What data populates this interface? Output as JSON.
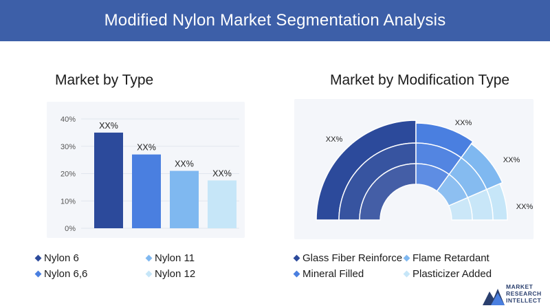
{
  "page": {
    "title": "Modified Nylon Market Segmentation Analysis"
  },
  "left": {
    "title": "Market by Type"
  },
  "right": {
    "title": "Market by Modification Type"
  },
  "colors": {
    "header": "#3d5fa8",
    "nylon6": "#2c4a9b",
    "nylon66": "#4a7fe0",
    "nylon11": "#7fb8f0",
    "nylon12": "#c6e6f8",
    "glass": "#2c4a9b",
    "flame": "#7fb8f0",
    "mineral": "#4a7fe0",
    "plasticizer": "#c6e6f8"
  },
  "chart_data": [
    {
      "type": "bar",
      "title": "Market by Type",
      "categories": [
        "Nylon 6",
        "Nylon 6,6",
        "Nylon 11",
        "Nylon 12"
      ],
      "values": [
        35,
        27,
        21,
        17.5
      ],
      "data_labels": [
        "XX%",
        "XX%",
        "XX%",
        "XX%"
      ],
      "ylim": [
        0,
        40
      ],
      "yticks": [
        "0%",
        "10%",
        "20%",
        "30%",
        "40%"
      ],
      "grid": true,
      "legend": "bottom"
    },
    {
      "type": "pie",
      "subtype": "half-donut",
      "title": "Market by Modification Type",
      "categories": [
        "Glass Fiber Reinforce",
        "Mineral Filled",
        "Flame Retardant",
        "Plasticizer Added"
      ],
      "values": [
        50,
        20,
        17,
        13
      ],
      "data_labels": [
        "XX%",
        "XX%",
        "XX%",
        "XX%"
      ],
      "legend": "bottom"
    }
  ],
  "legend_left": [
    {
      "label": "Nylon 6",
      "color": "#2c4a9b"
    },
    {
      "label": "Nylon 11",
      "color": "#7fb8f0"
    },
    {
      "label": "Nylon 6,6",
      "color": "#4a7fe0"
    },
    {
      "label": "Nylon 12",
      "color": "#c6e6f8"
    }
  ],
  "legend_right": [
    {
      "label": "Glass Fiber Reinforce",
      "color": "#2c4a9b"
    },
    {
      "label": "Flame Retardant",
      "color": "#7fb8f0"
    },
    {
      "label": "Mineral Filled",
      "color": "#4a7fe0"
    },
    {
      "label": "Plasticizer Added",
      "color": "#c6e6f8"
    }
  ],
  "logo": {
    "line1": "MARKET",
    "line2": "RESEARCH",
    "line3": "INTELLECT"
  }
}
